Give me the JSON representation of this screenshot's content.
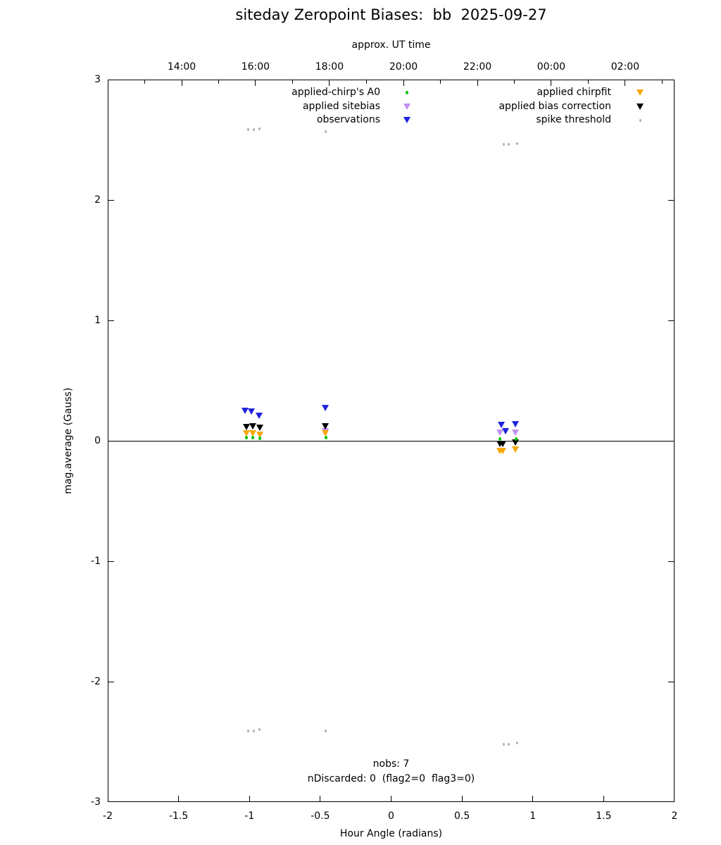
{
  "title": "siteday Zeropoint Biases:  bb  2025-09-27",
  "annotations": {
    "nobs": "nobs: 7",
    "ndiscarded": "nDiscarded: 0  (flag2=0  flag3=0)"
  },
  "axes": {
    "x": {
      "label": "Hour Angle (radians)"
    },
    "x2": {
      "label": "approx. UT time"
    },
    "y": {
      "label": "mag.average (Gauss)"
    }
  },
  "legend": {
    "columns": [
      [
        "a0",
        "sitebias",
        "observations"
      ],
      [
        "chirpfit",
        "biascorr",
        "spike"
      ]
    ]
  },
  "chart_data": {
    "type": "scatter",
    "title": "siteday Zeropoint Biases:  bb  2025-09-27",
    "xlabel": "Hour Angle (radians)",
    "x2label": "approx. UT time",
    "ylabel": "mag.average (Gauss)",
    "xlim": [
      -2,
      2
    ],
    "ylim": [
      -3,
      3
    ],
    "grid": false,
    "zero_line": 0,
    "x_ticks": [
      {
        "v": -2,
        "label": "-2"
      },
      {
        "v": -1.5,
        "label": "-1.5"
      },
      {
        "v": -1,
        "label": "-1"
      },
      {
        "v": -0.5,
        "label": "-0.5"
      },
      {
        "v": 0,
        "label": "0"
      },
      {
        "v": 0.5,
        "label": "0.5"
      },
      {
        "v": 1,
        "label": "1"
      },
      {
        "v": 1.5,
        "label": "1.5"
      },
      {
        "v": 2,
        "label": "2"
      }
    ],
    "y_ticks": [
      {
        "v": 3,
        "label": "3"
      },
      {
        "v": 2,
        "label": "2"
      },
      {
        "v": 1,
        "label": "1"
      },
      {
        "v": 0,
        "label": "0"
      },
      {
        "v": -1,
        "label": "-1"
      },
      {
        "v": -2,
        "label": "-2"
      },
      {
        "v": -3,
        "label": "-3"
      }
    ],
    "x2_ticks": [
      {
        "v": -1.739,
        "label": ""
      },
      {
        "v": -1.478,
        "label": "14:00"
      },
      {
        "v": -1.217,
        "label": ""
      },
      {
        "v": -0.957,
        "label": "16:00"
      },
      {
        "v": -0.696,
        "label": ""
      },
      {
        "v": -0.435,
        "label": "18:00"
      },
      {
        "v": -0.174,
        "label": ""
      },
      {
        "v": 0.087,
        "label": "20:00"
      },
      {
        "v": 0.348,
        "label": ""
      },
      {
        "v": 0.609,
        "label": "22:00"
      },
      {
        "v": 0.87,
        "label": ""
      },
      {
        "v": 1.13,
        "label": "00:00"
      },
      {
        "v": 1.391,
        "label": ""
      },
      {
        "v": 1.652,
        "label": "02:00"
      },
      {
        "v": 1.913,
        "label": ""
      }
    ],
    "render_order": [
      "sitebias",
      "chirpfit",
      "biascorr",
      "observations",
      "a0",
      "spike"
    ],
    "series": [
      {
        "key": "a0",
        "name": "applied-chirp's A0",
        "marker": "dot",
        "color": "#00c400",
        "points": [
          [
            -1.02,
            0.025
          ],
          [
            -0.975,
            0.025
          ],
          [
            -0.925,
            0.02
          ],
          [
            -0.46,
            0.025
          ],
          [
            0.77,
            0.015
          ],
          [
            0.88,
            0.015
          ]
        ]
      },
      {
        "key": "sitebias",
        "name": "applied sitebias",
        "marker": "triangle-down",
        "color": "#c08ff0",
        "points": [
          [
            -0.46,
            0.08
          ],
          [
            0.77,
            0.065
          ],
          [
            0.88,
            0.065
          ]
        ]
      },
      {
        "key": "observations",
        "name": "observations",
        "marker": "triangle-down",
        "color": "#1f22dd",
        "points": [
          [
            -1.03,
            0.25
          ],
          [
            -0.985,
            0.245
          ],
          [
            -0.93,
            0.21
          ],
          [
            -0.46,
            0.27
          ],
          [
            0.78,
            0.13
          ],
          [
            0.81,
            0.08
          ],
          [
            0.88,
            0.14
          ]
        ]
      },
      {
        "key": "chirpfit",
        "name": "applied chirpfit",
        "marker": "triangle-down",
        "color": "#f7a600",
        "points": [
          [
            -1.02,
            0.06
          ],
          [
            -0.975,
            0.06
          ],
          [
            -0.925,
            0.05
          ],
          [
            -0.46,
            0.06
          ],
          [
            0.77,
            -0.085
          ],
          [
            0.79,
            -0.085
          ],
          [
            0.88,
            -0.075
          ]
        ]
      },
      {
        "key": "biascorr",
        "name": "applied bias correction",
        "marker": "triangle-down",
        "color": "#000000",
        "points": [
          [
            -1.02,
            0.115
          ],
          [
            -0.975,
            0.12
          ],
          [
            -0.925,
            0.11
          ],
          [
            -0.46,
            0.12
          ],
          [
            0.77,
            -0.025
          ],
          [
            0.79,
            -0.025
          ],
          [
            0.88,
            -0.015
          ]
        ]
      },
      {
        "key": "spike",
        "name": "spike threshold",
        "marker": "small-dot",
        "color": "#b0b0b0",
        "points": [
          [
            -1.01,
            2.585
          ],
          [
            -0.97,
            2.585
          ],
          [
            -0.93,
            2.59
          ],
          [
            -0.46,
            2.57
          ],
          [
            0.795,
            2.46
          ],
          [
            0.83,
            2.46
          ],
          [
            0.89,
            2.47
          ],
          [
            -1.01,
            -2.41
          ],
          [
            -0.97,
            -2.41
          ],
          [
            -0.93,
            -2.4
          ],
          [
            -0.46,
            -2.41
          ],
          [
            0.795,
            -2.52
          ],
          [
            0.83,
            -2.52
          ],
          [
            0.89,
            -2.51
          ]
        ]
      }
    ]
  }
}
